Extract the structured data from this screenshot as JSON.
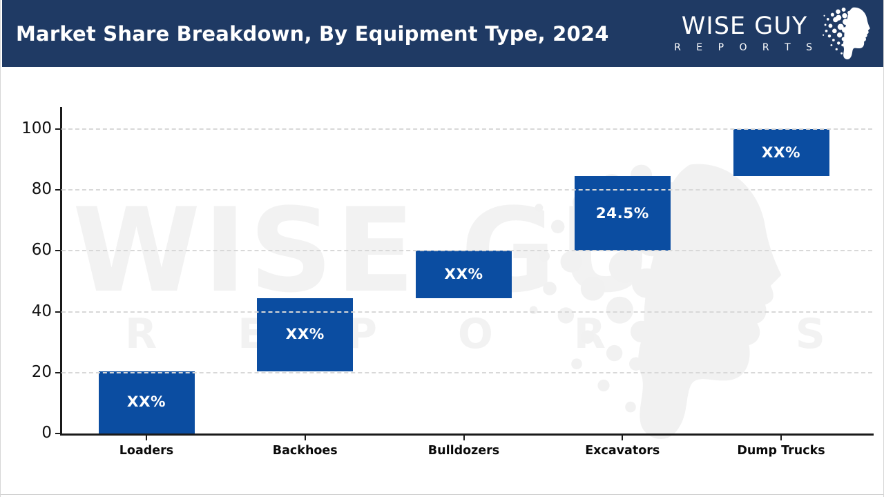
{
  "header": {
    "title": "Market Share Breakdown, By Equipment Type, 2024",
    "logo": {
      "line1": "WISE GUY",
      "line2": "R E P O R T S",
      "mark": "dotted-head-profile"
    }
  },
  "watermark": {
    "line1": "WISE GUY",
    "line2": "R E P O R T S",
    "mark": "dotted-head-profile"
  },
  "chart_data": {
    "type": "bar",
    "variant": "floating_segment_waterfall",
    "title": "Market Share Breakdown, By Equipment Type, 2024",
    "categories": [
      "Loaders",
      "Backhoes",
      "Bulldozers",
      "Excavators",
      "Dump Trucks"
    ],
    "segments": [
      {
        "category": "Loaders",
        "start": 0,
        "end": 20.5,
        "height": 20.5,
        "label": "XX%"
      },
      {
        "category": "Backhoes",
        "start": 20.5,
        "end": 44.5,
        "height": 24,
        "label": "XX%"
      },
      {
        "category": "Bulldozers",
        "start": 44.5,
        "end": 60,
        "height": 15.5,
        "label": "XX%"
      },
      {
        "category": "Excavators",
        "start": 60,
        "end": 84.5,
        "height": 24.5,
        "label": "24.5%",
        "value": 24.5
      },
      {
        "category": "Dump Trucks",
        "start": 84.5,
        "end": 100,
        "height": 15.5,
        "label": "XX%"
      }
    ],
    "yticks": [
      0,
      20,
      40,
      60,
      80,
      100
    ],
    "ylim": [
      0,
      107
    ],
    "xlabel": "",
    "ylabel": "",
    "grid": "horizontal-dashed",
    "grid_above_bars": true,
    "legend": "none",
    "colors": {
      "bar": "#0b4da1",
      "bar_label": "#ffffff",
      "header_bg": "#1f3a64",
      "header_text": "#ffffff",
      "grid": "#d8d8d8",
      "axis": "#1a1a1a",
      "tick_text": "#111111",
      "watermark": "#f2f2f2",
      "background": "#ffffff"
    }
  }
}
